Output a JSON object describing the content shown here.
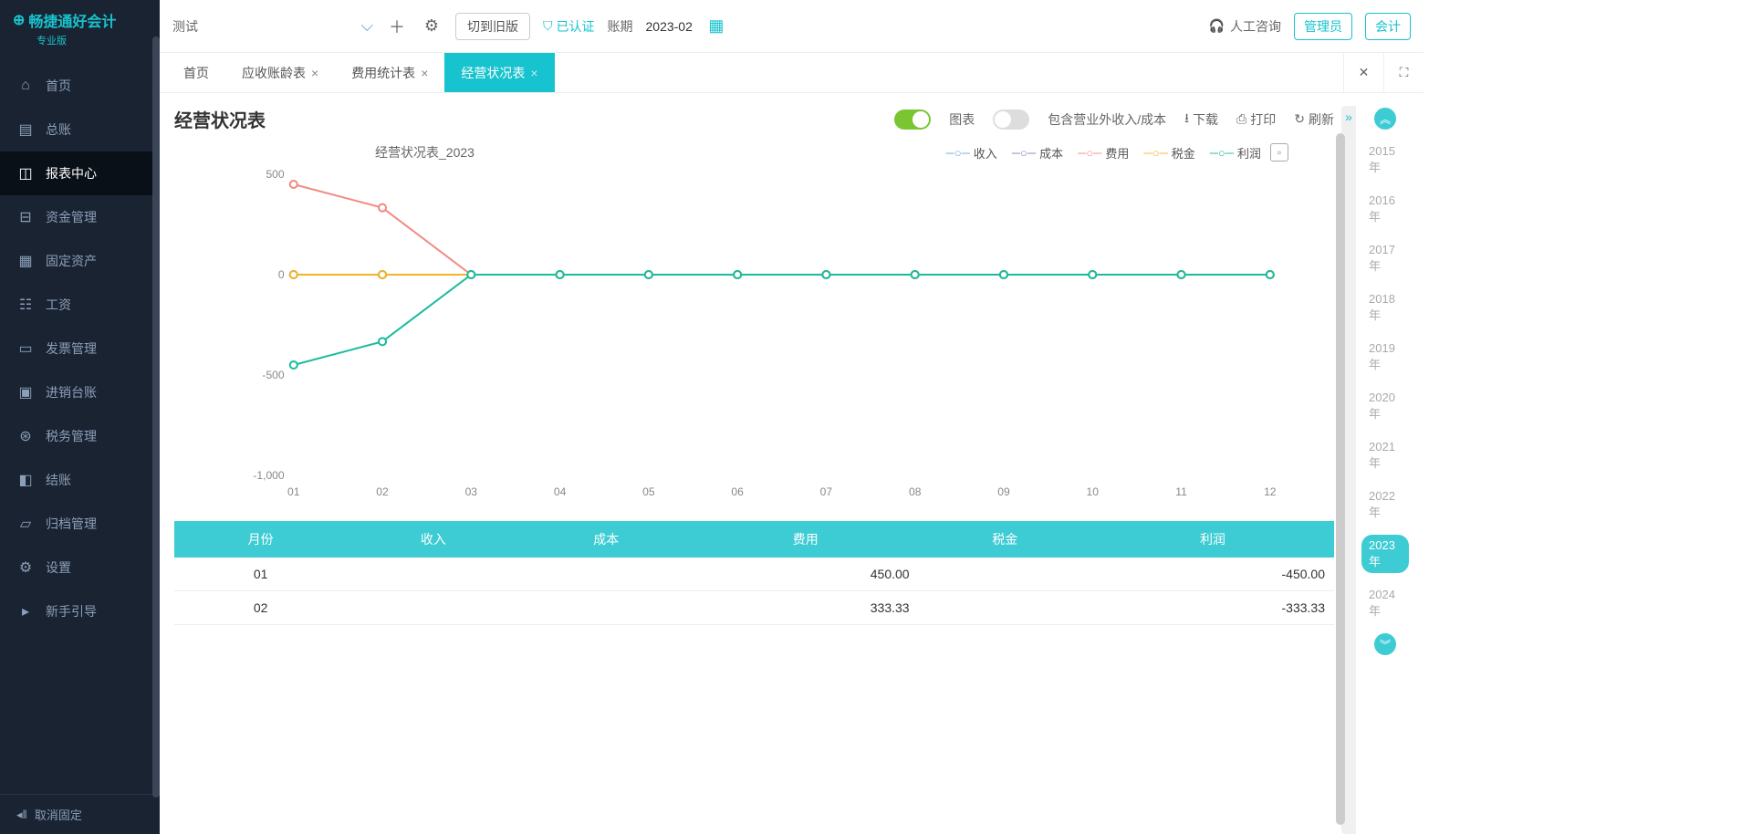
{
  "brand": {
    "name": "畅捷通好会计",
    "edition": "专业版"
  },
  "sidebar": {
    "items": [
      {
        "label": "首页",
        "icon": "⌂"
      },
      {
        "label": "总账",
        "icon": "▤"
      },
      {
        "label": "报表中心",
        "icon": "◫",
        "active": true
      },
      {
        "label": "资金管理",
        "icon": "⊟"
      },
      {
        "label": "固定资产",
        "icon": "▦"
      },
      {
        "label": "工资",
        "icon": "☷"
      },
      {
        "label": "发票管理",
        "icon": "▭"
      },
      {
        "label": "进销台账",
        "icon": "▣"
      },
      {
        "label": "税务管理",
        "icon": "⊛"
      },
      {
        "label": "结账",
        "icon": "◧"
      },
      {
        "label": "归档管理",
        "icon": "▱"
      },
      {
        "label": "设置",
        "icon": "⚙"
      },
      {
        "label": "新手引导",
        "icon": "▸"
      }
    ],
    "footer": "取消固定"
  },
  "header": {
    "company": "测试",
    "old_version": "切到旧版",
    "verified": "已认证",
    "period_label": "账期",
    "period_value": "2023-02",
    "support": "人工咨询",
    "role1": "管理员",
    "role2": "会计"
  },
  "tabs": [
    {
      "label": "首页",
      "closable": false
    },
    {
      "label": "应收账龄表",
      "closable": true
    },
    {
      "label": "费用统计表",
      "closable": true
    },
    {
      "label": "经营状况表",
      "closable": true,
      "active": true
    }
  ],
  "page": {
    "title": "经营状况表",
    "toggle_chart": "图表",
    "toggle_extra": "包含营业外收入/成本",
    "download": "下载",
    "print": "打印",
    "refresh": "刷新"
  },
  "chart": {
    "title": "经营状况表_2023",
    "type": "line",
    "ylim": [
      -1000,
      500
    ],
    "yticks": [
      500,
      0,
      -500,
      -1000
    ],
    "categories": [
      "01",
      "02",
      "03",
      "04",
      "05",
      "06",
      "07",
      "08",
      "09",
      "10",
      "11",
      "12"
    ],
    "series": [
      {
        "name": "收入",
        "color": "#6fa8dc",
        "data": [
          0,
          0,
          0,
          0,
          0,
          0,
          0,
          0,
          0,
          0,
          0,
          0
        ]
      },
      {
        "name": "成本",
        "color": "#8e7cc3",
        "data": [
          0,
          0,
          0,
          0,
          0,
          0,
          0,
          0,
          0,
          0,
          0,
          0
        ]
      },
      {
        "name": "费用",
        "color": "#f28b82",
        "data": [
          450,
          333.33,
          0,
          0,
          0,
          0,
          0,
          0,
          0,
          0,
          0,
          0
        ]
      },
      {
        "name": "税金",
        "color": "#f0b429",
        "data": [
          0,
          0,
          0,
          0,
          0,
          0,
          0,
          0,
          0,
          0,
          0,
          0
        ]
      },
      {
        "name": "利润",
        "color": "#1abc9c",
        "data": [
          -450,
          -333.33,
          0,
          0,
          0,
          0,
          0,
          0,
          0,
          0,
          0,
          0
        ]
      }
    ],
    "background": "#ffffff",
    "axis_color": "#cccccc",
    "marker_style": "circle-open"
  },
  "table": {
    "columns": [
      "月份",
      "收入",
      "成本",
      "费用",
      "税金",
      "利润"
    ],
    "rows": [
      [
        "01",
        "",
        "",
        "450.00",
        "",
        "-450.00"
      ],
      [
        "02",
        "",
        "",
        "333.33",
        "",
        "-333.33"
      ]
    ]
  },
  "years": {
    "list": [
      "2015年",
      "2016年",
      "2017年",
      "2018年",
      "2019年",
      "2020年",
      "2021年",
      "2022年",
      "2023年",
      "2024年"
    ],
    "active": "2023年"
  }
}
